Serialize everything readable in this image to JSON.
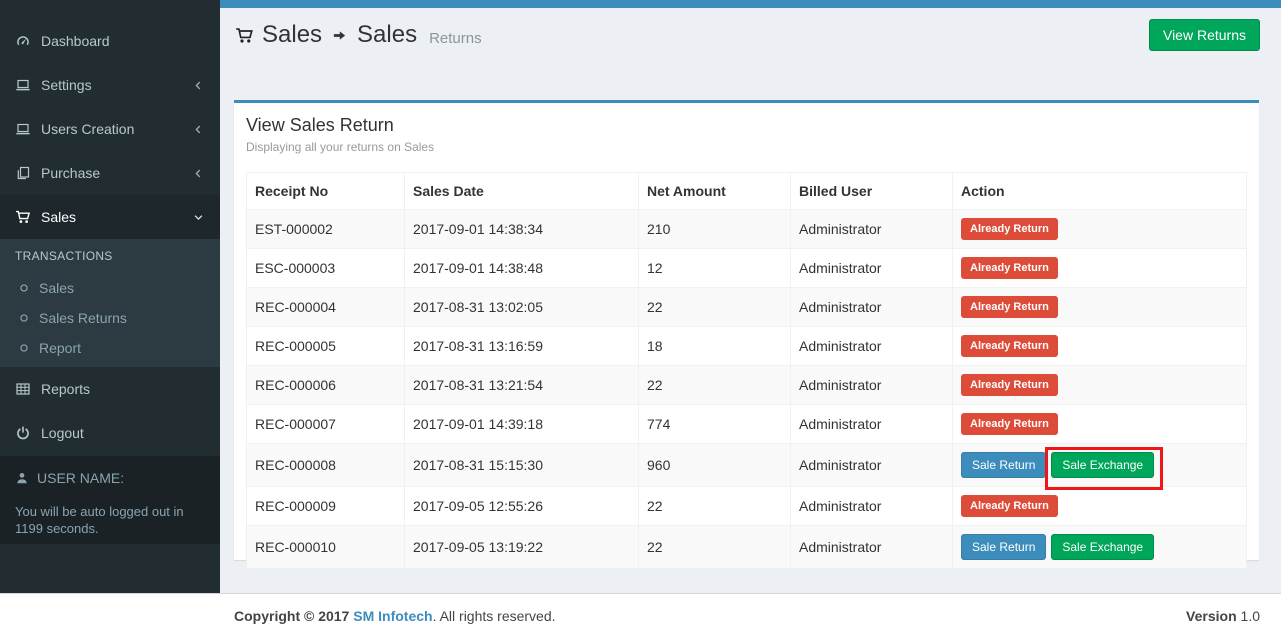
{
  "sidebar": {
    "items": [
      {
        "label": "Dashboard",
        "icon": "dashboard",
        "chevron": null,
        "active": false
      },
      {
        "label": "Settings",
        "icon": "laptop",
        "chevron": "left",
        "active": false
      },
      {
        "label": "Users Creation",
        "icon": "laptop",
        "chevron": "left",
        "active": false
      },
      {
        "label": "Purchase",
        "icon": "copy",
        "chevron": "left",
        "active": false
      },
      {
        "label": "Sales",
        "icon": "cart",
        "chevron": "down",
        "active": true
      }
    ],
    "submenu_header": "TRANSACTIONS",
    "submenu": [
      {
        "label": "Sales"
      },
      {
        "label": "Sales Returns"
      },
      {
        "label": "Report"
      }
    ],
    "items_after": [
      {
        "label": "Reports",
        "icon": "table"
      },
      {
        "label": "Logout",
        "icon": "power"
      }
    ],
    "user_label": "USER NAME:",
    "auto_logout_line1": "You will be auto logged out in",
    "auto_logout_line2": "1199 seconds."
  },
  "header": {
    "title_primary": "Sales",
    "title_secondary": "Sales",
    "title_small": "Returns",
    "view_returns_button": "View Returns"
  },
  "panel": {
    "title": "View Sales Return",
    "subtitle": "Displaying all your returns on Sales"
  },
  "table": {
    "columns": [
      "Receipt No",
      "Sales Date",
      "Net Amount",
      "Billed User",
      "Action"
    ],
    "action_labels": {
      "already_return": "Already Return",
      "sale_return": "Sale Return",
      "sale_exchange": "Sale Exchange"
    },
    "rows": [
      {
        "receipt": "EST-000002",
        "date": "2017-09-01 14:38:34",
        "amount": "210",
        "user": "Administrator",
        "actions": [
          "already_return"
        ],
        "highlight": null
      },
      {
        "receipt": "ESC-000003",
        "date": "2017-09-01 14:38:48",
        "amount": "12",
        "user": "Administrator",
        "actions": [
          "already_return"
        ],
        "highlight": null
      },
      {
        "receipt": "REC-000004",
        "date": "2017-08-31 13:02:05",
        "amount": "22",
        "user": "Administrator",
        "actions": [
          "already_return"
        ],
        "highlight": null
      },
      {
        "receipt": "REC-000005",
        "date": "2017-08-31 13:16:59",
        "amount": "18",
        "user": "Administrator",
        "actions": [
          "already_return"
        ],
        "highlight": null
      },
      {
        "receipt": "REC-000006",
        "date": "2017-08-31 13:21:54",
        "amount": "22",
        "user": "Administrator",
        "actions": [
          "already_return"
        ],
        "highlight": null
      },
      {
        "receipt": "REC-000007",
        "date": "2017-09-01 14:39:18",
        "amount": "774",
        "user": "Administrator",
        "actions": [
          "already_return"
        ],
        "highlight": null
      },
      {
        "receipt": "REC-000008",
        "date": "2017-08-31 15:15:30",
        "amount": "960",
        "user": "Administrator",
        "actions": [
          "sale_return",
          "sale_exchange"
        ],
        "highlight": "sale_exchange"
      },
      {
        "receipt": "REC-000009",
        "date": "2017-09-05 12:55:26",
        "amount": "22",
        "user": "Administrator",
        "actions": [
          "already_return"
        ],
        "highlight": null
      },
      {
        "receipt": "REC-000010",
        "date": "2017-09-05 13:19:22",
        "amount": "22",
        "user": "Administrator",
        "actions": [
          "sale_return",
          "sale_exchange"
        ],
        "highlight": null
      }
    ]
  },
  "footer": {
    "copyright_prefix": "Copyright © 2017",
    "company": "SM Infotech",
    "copyright_suffix": ". All rights reserved.",
    "version_label": "Version",
    "version_value": "1.0"
  },
  "colors": {
    "accent_blue": "#3c8dbc",
    "button_green": "#00a65a",
    "badge_red": "#dd4b39",
    "annotation_red": "#f01616",
    "sidebar_bg": "#222d32",
    "sidebar_active_bg": "#1e282c",
    "submenu_bg": "#2c3b41",
    "body_bg": "#ecf0f5"
  }
}
